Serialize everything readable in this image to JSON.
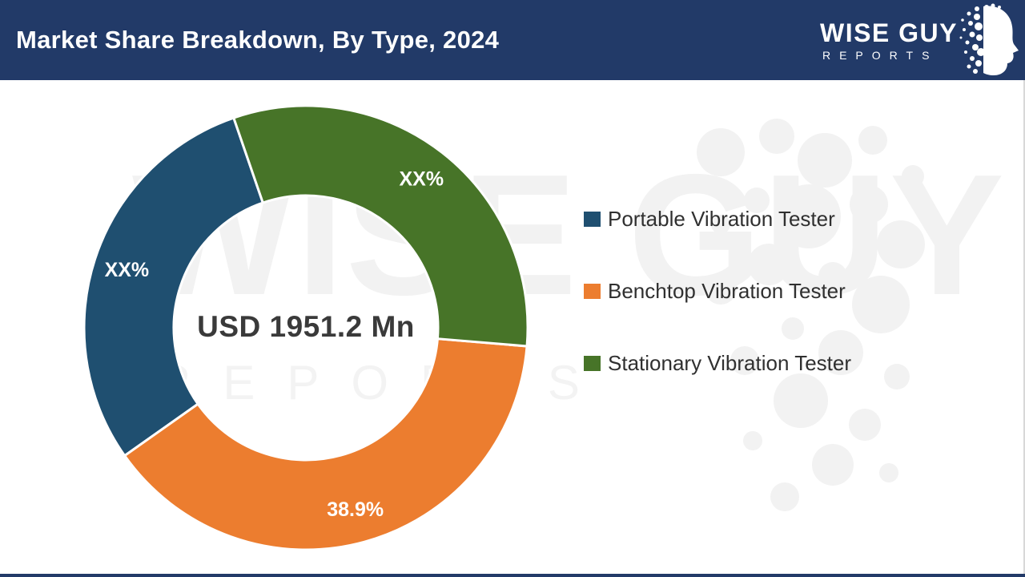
{
  "header": {
    "title": "Market Share Breakdown, By Type, 2024",
    "logo": {
      "line1": "WISE GUY",
      "line2": "REPORTS"
    }
  },
  "watermark": {
    "line1": "WISE GUY",
    "line2": "REPORTS"
  },
  "colors": {
    "header_bg": "#223A68",
    "center_text": "#3A3A3A",
    "legend_text": "#303030",
    "watermark": "#F2F2F2",
    "slice_label_text": "#FFFFFF"
  },
  "chart_data": {
    "type": "pie",
    "subtype": "donut",
    "title": "Market Share Breakdown, By Type, 2024",
    "center_total": "USD 1951.2 Mn",
    "start_angle_deg": -19,
    "direction": "counterclockwise",
    "legend_position": "right",
    "series": [
      {
        "name": "Portable Vibration Tester",
        "label": "XX%",
        "value": 29.5,
        "color": "#1F4F70"
      },
      {
        "name": "Benchtop Vibration Tester",
        "label": "38.9%",
        "value": 38.9,
        "color": "#EC7D2F"
      },
      {
        "name": "Stationary Vibration Tester",
        "label": "XX%",
        "value": 31.6,
        "color": "#477428"
      }
    ]
  }
}
